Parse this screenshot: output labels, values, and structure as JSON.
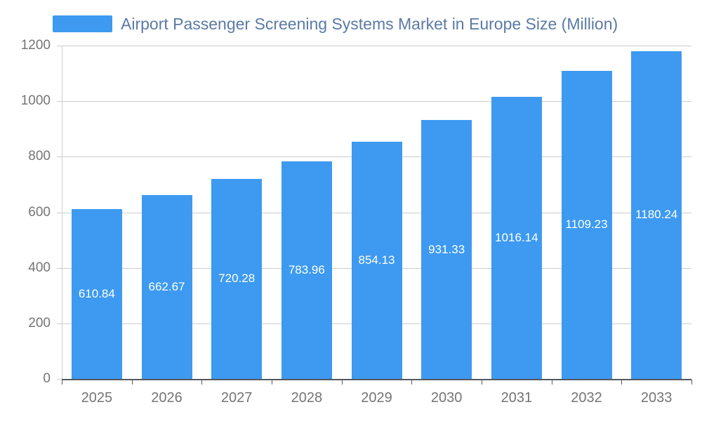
{
  "chart_data": {
    "type": "bar",
    "title": "Airport Passenger Screening Systems Market in Europe Size (Million)",
    "categories": [
      "2025",
      "2026",
      "2027",
      "2028",
      "2029",
      "2030",
      "2031",
      "2032",
      "2033"
    ],
    "values": [
      610.84,
      662.67,
      720.28,
      783.96,
      854.13,
      931.33,
      1016.14,
      1109.23,
      1180.24
    ],
    "value_labels": [
      "610.84",
      "662.67",
      "720.28",
      "783.96",
      "854.13",
      "931.33",
      "1016.14",
      "1109.23",
      "1180.24"
    ],
    "series_name": "Airport Passenger Screening Systems Market in Europe Size (Million)",
    "xlabel": "",
    "ylabel": "",
    "ylim": [
      0,
      1200
    ],
    "y_ticks": [
      0,
      200,
      400,
      600,
      800,
      1000,
      1200
    ],
    "grid": true,
    "legend_position": "top-left",
    "colors": {
      "bar": "#3D9AF0",
      "bar_value_text": "#ffffff",
      "axis_text": "#757575",
      "gridline": "#cccccc",
      "y_axis_line": "#cccccc",
      "x_axis_line": "#55585e",
      "title_text": "#5b7aa5"
    }
  }
}
